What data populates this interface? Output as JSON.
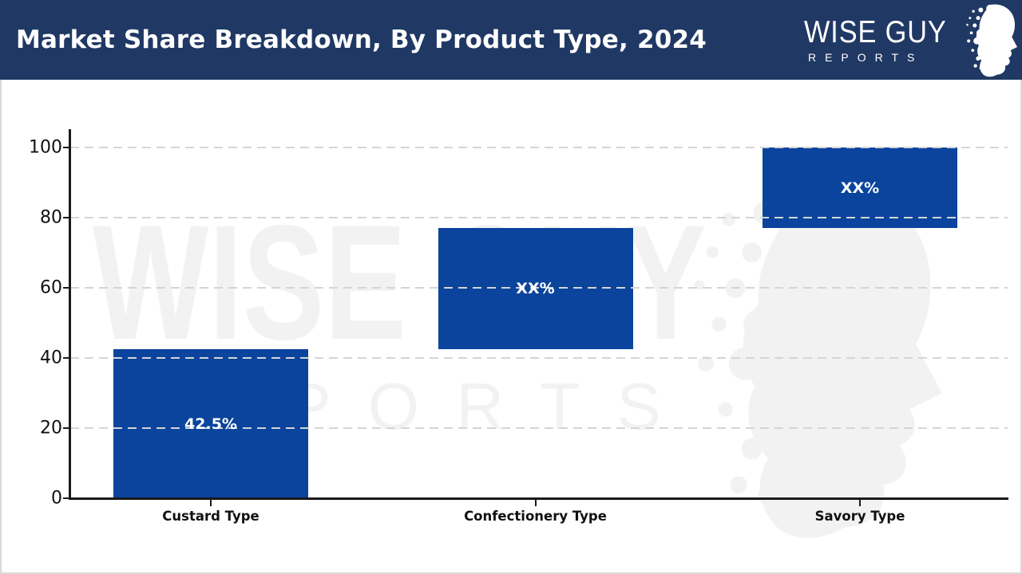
{
  "header": {
    "title": "Market Share Breakdown, By Product Type, 2024",
    "brand": {
      "name": "WISE GUY",
      "sub": "REPORTS"
    }
  },
  "watermark": {
    "name": "WISE GUY",
    "sub": "REPORTS"
  },
  "chart_data": {
    "type": "bar",
    "variant": "floating-segment (waterfall-style market share breakdown)",
    "title": "Market Share Breakdown, By Product Type, 2024",
    "categories": [
      "Custard Type",
      "Confectionery Type",
      "Savory Type"
    ],
    "bars": [
      {
        "category": "Custard Type",
        "start": 0,
        "end": 42.5,
        "label": "42.5%"
      },
      {
        "category": "Confectionery Type",
        "start": 42.5,
        "end": 77,
        "label": "XX%"
      },
      {
        "category": "Savory Type",
        "start": 77,
        "end": 100,
        "label": "XX%"
      }
    ],
    "xlabel": "",
    "ylabel": "",
    "ylim": [
      0,
      100
    ],
    "yticks": [
      0,
      20,
      40,
      60,
      80,
      100
    ],
    "grid": "horizontal-dashed",
    "legend": "none",
    "bar_color": "#0a449c",
    "value_label_color": "#ffffff"
  },
  "colors": {
    "header_bg": "#203864",
    "bar": "#0a449c",
    "grid": "#d5d5d5",
    "axis": "#1a1a1a",
    "watermark": "#f2f2f2",
    "page_border": "#d9d9d9",
    "title_text": "#ffffff"
  }
}
